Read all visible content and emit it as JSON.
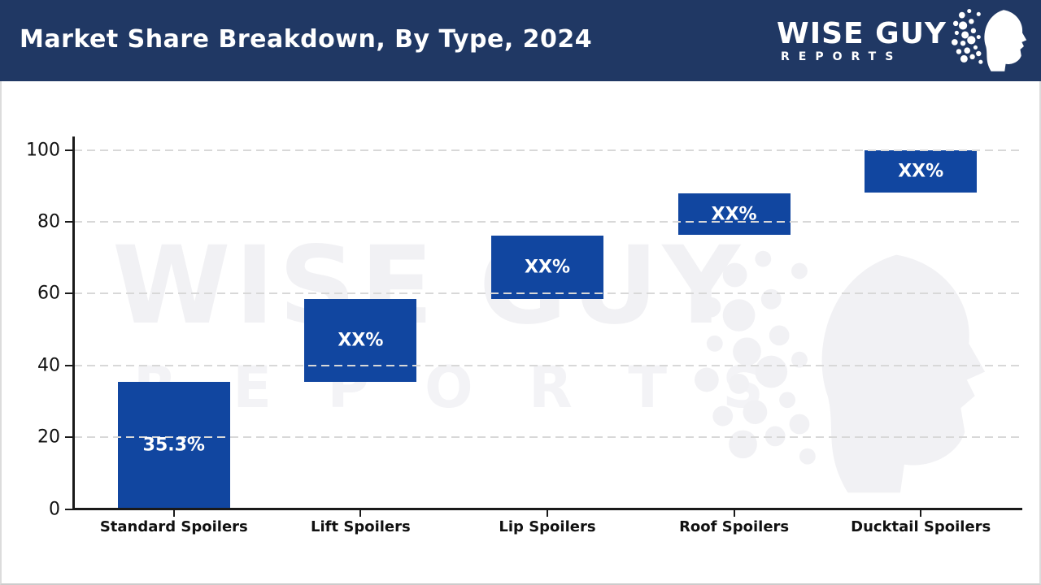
{
  "header": {
    "title": "Market Share Breakdown, By Type, 2024",
    "logo": {
      "line1": "WISE GUY",
      "line2": "REPORTS"
    }
  },
  "watermark": {
    "line1": "WISE GUY",
    "line2": "R E P O R T S"
  },
  "colors": {
    "header_bg": "#203864",
    "bar": "#1146a0",
    "grid": "#d8d8d8",
    "axis": "#1a1a1a",
    "bar_label": "#ffffff",
    "watermark": "#f1f1f4"
  },
  "chart_data": {
    "type": "bar",
    "variant": "waterfall",
    "title": "Market Share Breakdown, By Type, 2024",
    "categories": [
      "Standard Spoilers",
      "Lift Spoilers",
      "Lip Spoilers",
      "Roof Spoilers",
      "Ducktail Spoilers"
    ],
    "segments": [
      {
        "category": "Standard Spoilers",
        "start": 0,
        "end": 35.3,
        "label": "35.3%"
      },
      {
        "category": "Lift Spoilers",
        "start": 35.3,
        "end": 58.5,
        "label": "XX%"
      },
      {
        "category": "Lip Spoilers",
        "start": 58.5,
        "end": 76.2,
        "label": "XX%"
      },
      {
        "category": "Roof Spoilers",
        "start": 76.4,
        "end": 87.8,
        "label": "XX%"
      },
      {
        "category": "Ducktail Spoilers",
        "start": 88.1,
        "end": 100,
        "label": "XX%"
      }
    ],
    "xlabel": "",
    "ylabel": "",
    "yticks": [
      0,
      20,
      40,
      60,
      80,
      100
    ],
    "ylim": [
      0,
      104
    ],
    "grid": "horizontal-dashed",
    "legend": false
  }
}
